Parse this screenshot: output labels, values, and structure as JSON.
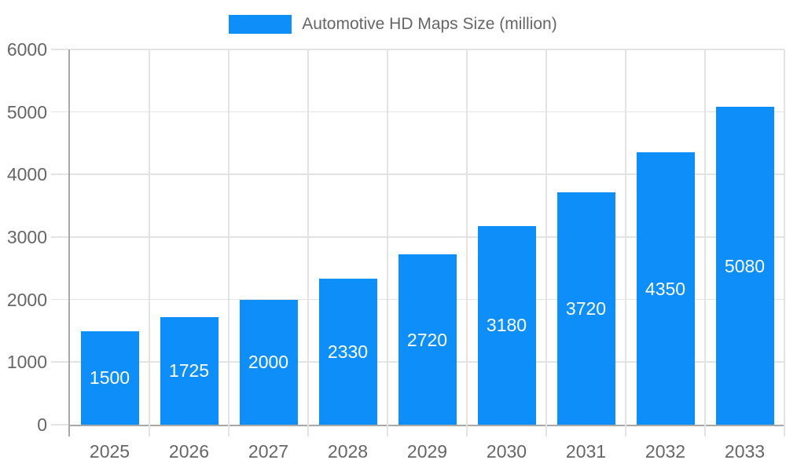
{
  "chart_data": {
    "type": "bar",
    "title": "Automotive HD Maps Size (million)",
    "legend_position": "top",
    "categories": [
      "2025",
      "2026",
      "2027",
      "2028",
      "2029",
      "2030",
      "2031",
      "2032",
      "2033"
    ],
    "series": [
      {
        "name": "Automotive HD Maps Size (million)",
        "values": [
          1500,
          1725,
          2000,
          2330,
          2720,
          3180,
          3720,
          4350,
          5080
        ]
      }
    ],
    "xlabel": "",
    "ylabel": "",
    "ylim": [
      0,
      6000
    ],
    "yticks": [
      0,
      1000,
      2000,
      3000,
      4000,
      5000,
      6000
    ],
    "grid": true,
    "bar_color": "#0d8ef8",
    "value_label_color": "#ffffff",
    "axis_text_color": "#666666"
  }
}
